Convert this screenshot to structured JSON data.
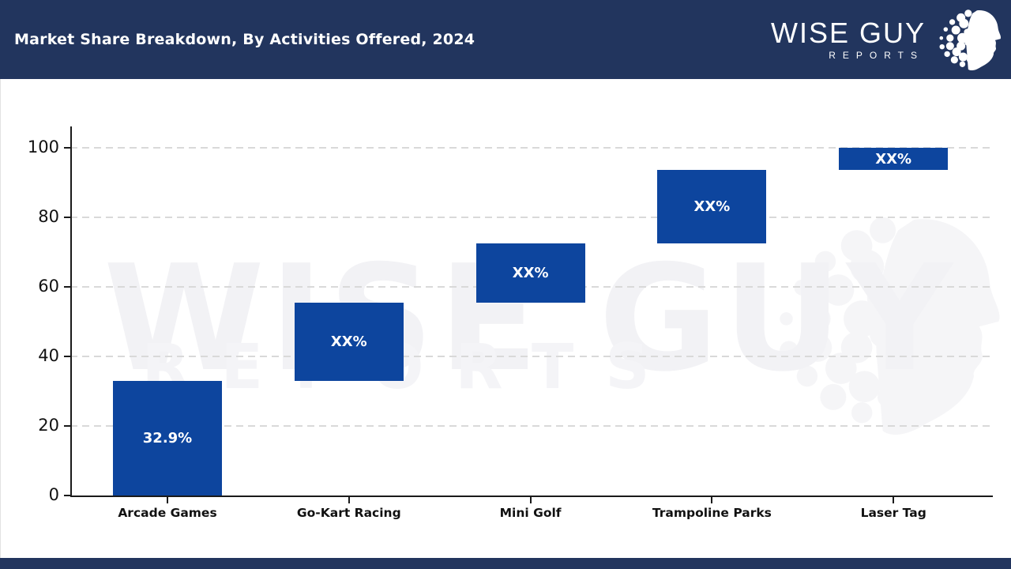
{
  "header": {
    "title": "Market Share Breakdown, By Activities Offered, 2024",
    "bg_color": "#22355e",
    "logo": {
      "line1": "WISE GUY",
      "line2": "REPORTS"
    }
  },
  "watermark": {
    "line1": "WISE GUY",
    "line2": "REPORTS"
  },
  "chart_data": {
    "type": "bar",
    "subtype": "waterfall-floating-bars",
    "title": "Market Share Breakdown, By Activities Offered, 2024",
    "categories": [
      "Arcade Games",
      "Go-Kart Racing",
      "Mini Golf",
      "Trampoline Parks",
      "Laser Tag"
    ],
    "segments": [
      {
        "category": "Arcade Games",
        "start": 0,
        "end": 32.9,
        "label": "32.9%"
      },
      {
        "category": "Go-Kart Racing",
        "start": 32.9,
        "end": 55.5,
        "label": "XX%"
      },
      {
        "category": "Mini Golf",
        "start": 55.5,
        "end": 72.5,
        "label": "XX%"
      },
      {
        "category": "Trampoline Parks",
        "start": 72.5,
        "end": 93.6,
        "label": "XX%"
      },
      {
        "category": "Laser Tag",
        "start": 93.6,
        "end": 100,
        "label": "XX%"
      }
    ],
    "xlabel": "",
    "ylabel": "",
    "ylim": [
      0,
      100
    ],
    "yticks": [
      0,
      20,
      40,
      60,
      80,
      100
    ],
    "grid": "horizontal-dashed",
    "legend": "none",
    "bar_color": "#0d459e",
    "bar_label_color": "#ffffff",
    "axis_color": "#1a1a1a"
  },
  "footer": {
    "bg_color": "#22355e"
  }
}
